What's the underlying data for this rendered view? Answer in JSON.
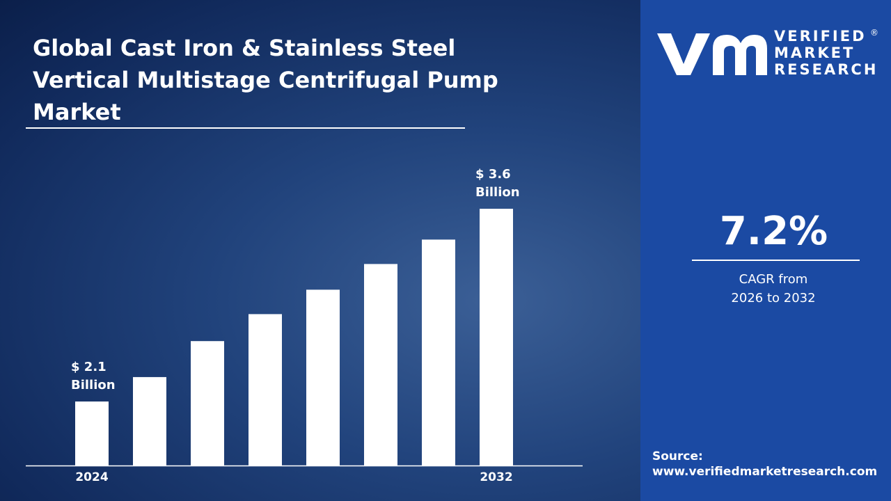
{
  "header": {
    "title": "Global Cast Iron & Stainless Steel Vertical Multistage Centrifugal Pump Market"
  },
  "logo": {
    "line1": "VERIFIED",
    "line2": "MARKET",
    "line3": "RESEARCH"
  },
  "cagr": {
    "value": "7.2%",
    "label": "CAGR from 2026 to 2032"
  },
  "source": {
    "label": "Source:",
    "url": "www.verifiedmarketresearch.com"
  },
  "chart_data": {
    "type": "bar",
    "categories": [
      "2024",
      null,
      null,
      null,
      null,
      null,
      null,
      "2032"
    ],
    "values": [
      2.1,
      2.29,
      2.57,
      2.78,
      2.97,
      3.17,
      3.36,
      3.6
    ],
    "value_labels": [
      "$ 2.1 Billion",
      null,
      null,
      null,
      null,
      null,
      null,
      "$ 3.6 Billion"
    ],
    "color": "#ffffff"
  }
}
